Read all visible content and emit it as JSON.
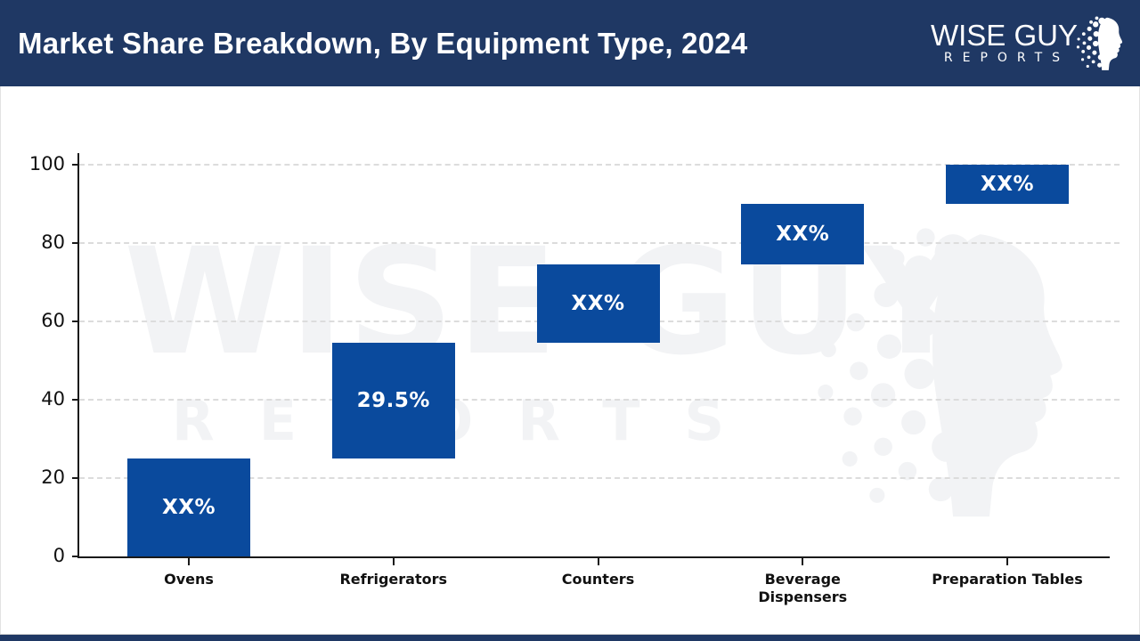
{
  "header": {
    "title": "Market Share Breakdown, By Equipment Type, 2024",
    "logo": {
      "line1": "WISE GUY",
      "line2": "REPORTS"
    }
  },
  "watermark": {
    "line1": "WISE GUY",
    "line2": "REPORTS"
  },
  "colors": {
    "header_bg": "#1f3864",
    "footer_bg": "#1f3864",
    "bar": "#0a4a9d",
    "bar_label": "#ffffff",
    "gridline": "#dcdcdc",
    "axis": "#1a1a1a",
    "watermark": "#f2f3f5"
  },
  "chart_data": {
    "type": "bar",
    "subtype": "waterfall",
    "title": "Market Share Breakdown, By Equipment Type, 2024",
    "xlabel": "",
    "ylabel": "",
    "categories": [
      "Ovens",
      "Refrigerators",
      "Counters",
      "Beverage\nDispensers",
      "Preparation Tables"
    ],
    "series": [
      {
        "name": "Market share (%)",
        "segments": [
          {
            "category": "Ovens",
            "start": 0,
            "end": 25,
            "size": 25,
            "label": "XX%"
          },
          {
            "category": "Refrigerators",
            "start": 25,
            "end": 54.5,
            "size": 29.5,
            "label": "29.5%"
          },
          {
            "category": "Counters",
            "start": 54.5,
            "end": 74.5,
            "size": 20,
            "label": "XX%"
          },
          {
            "category": "Beverage Dispensers",
            "start": 74.5,
            "end": 90,
            "size": 15.5,
            "label": "XX%"
          },
          {
            "category": "Preparation Tables",
            "start": 90,
            "end": 100,
            "size": 10,
            "label": "XX%"
          }
        ]
      }
    ],
    "yticks": [
      0,
      20,
      40,
      60,
      80,
      100
    ],
    "ylim": [
      0,
      103
    ],
    "grid": "horizontal-dashed",
    "legend": "none"
  }
}
